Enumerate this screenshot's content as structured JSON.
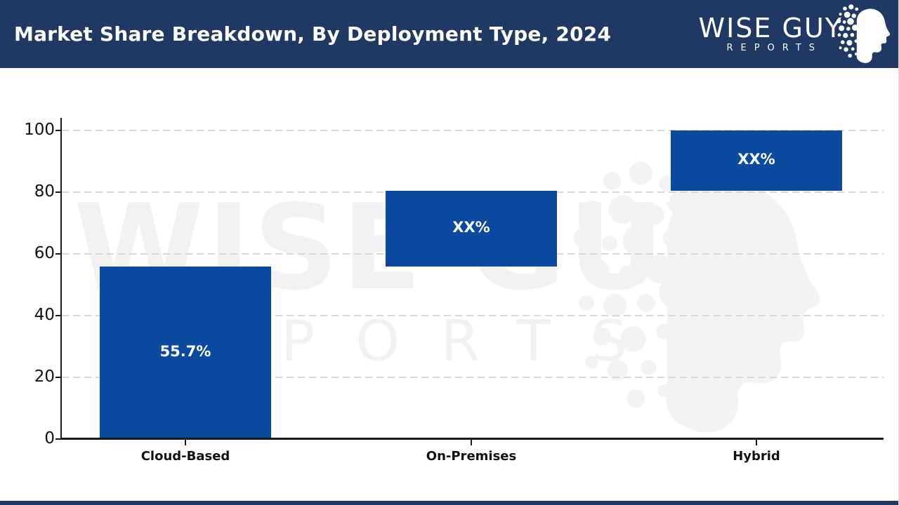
{
  "header": {
    "title": "Market Share Breakdown, By Deployment Type, 2024",
    "logo": {
      "line1": "WISE GUY",
      "line2": "REPORTS"
    }
  },
  "watermark": {
    "line1": "WISE GUY",
    "line2": "REPORTS"
  },
  "colors": {
    "header_bg": "#203864",
    "bar": "#0B4A9F",
    "bar_label": "#ffffff",
    "grid": "#d9d9d9",
    "axis": "#1a1a1a",
    "watermark": "#f2f2f4",
    "footer_bar": "#203864"
  },
  "chart_data": {
    "type": "bar",
    "subtype": "waterfall",
    "title": "Market Share Breakdown, By Deployment Type, 2024",
    "xlabel": "",
    "ylabel": "",
    "categories": [
      "Cloud-Based",
      "On-Premises",
      "Hybrid"
    ],
    "segments": [
      {
        "category": "Cloud-Based",
        "start": 0,
        "end": 55.7,
        "label": "55.7%"
      },
      {
        "category": "On-Premises",
        "start": 55.7,
        "end": 80.3,
        "label": "XX%"
      },
      {
        "category": "Hybrid",
        "start": 80.3,
        "end": 100,
        "label": "XX%"
      }
    ],
    "yticks": [
      0,
      20,
      40,
      60,
      80,
      100
    ],
    "ylim": [
      0,
      100
    ],
    "grid": "horizontal-dashed",
    "legend": "none",
    "bar_value_labels_inside": true
  }
}
